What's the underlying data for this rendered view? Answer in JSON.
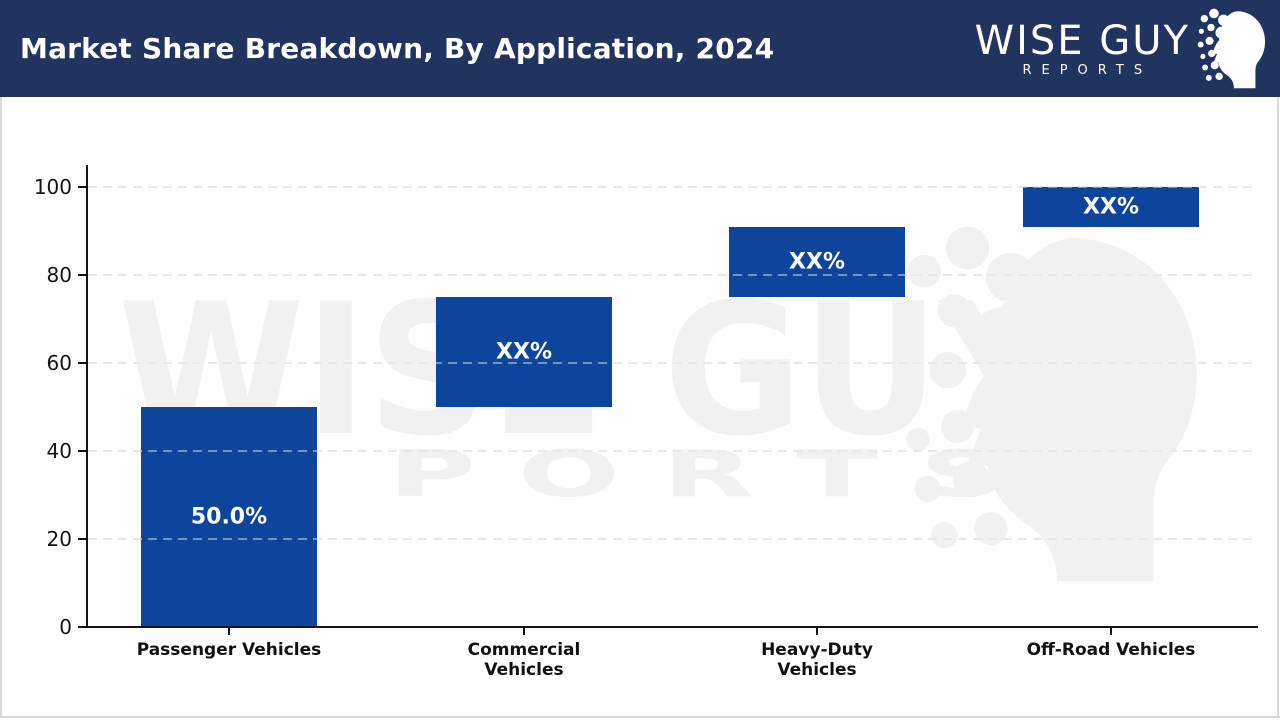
{
  "header": {
    "title": "Market Share Breakdown, By Application, 2024",
    "bg_color": "#20345f",
    "logo": {
      "line1": "WISE GUY",
      "line2": "REPORTS"
    }
  },
  "watermark": {
    "line1": "WISE GUY",
    "line2": "P O R T S",
    "color": "#f1f1f1"
  },
  "chart_data": {
    "type": "bar",
    "subtype": "waterfall",
    "title": "Market Share Breakdown, By Application, 2024",
    "categories": [
      "Passenger Vehicles",
      "Commercial Vehicles",
      "Heavy-Duty Vehicles",
      "Off-Road Vehicles"
    ],
    "category_lines": [
      [
        "Passenger Vehicles"
      ],
      [
        "Commercial",
        "Vehicles"
      ],
      [
        "Heavy-Duty",
        "Vehicles"
      ],
      [
        "Off-Road Vehicles"
      ]
    ],
    "segments": [
      {
        "category": "Passenger Vehicles",
        "start": 0,
        "end": 50,
        "label": "50.0%"
      },
      {
        "category": "Commercial Vehicles",
        "start": 50,
        "end": 75,
        "label": "XX%"
      },
      {
        "category": "Heavy-Duty Vehicles",
        "start": 75,
        "end": 91,
        "label": "XX%"
      },
      {
        "category": "Off-Road Vehicles",
        "start": 91,
        "end": 100,
        "label": "XX%"
      }
    ],
    "yticks": [
      0,
      20,
      40,
      60,
      80,
      100
    ],
    "ylim": [
      0,
      105
    ],
    "xlabel": "",
    "ylabel": "",
    "grid": "dashed-horizontal",
    "legend": "none",
    "bar_color": "#0d459c",
    "bar_label_color": "#ffffff",
    "grid_color": "#d9d9d9",
    "axis_color": "#141414"
  }
}
